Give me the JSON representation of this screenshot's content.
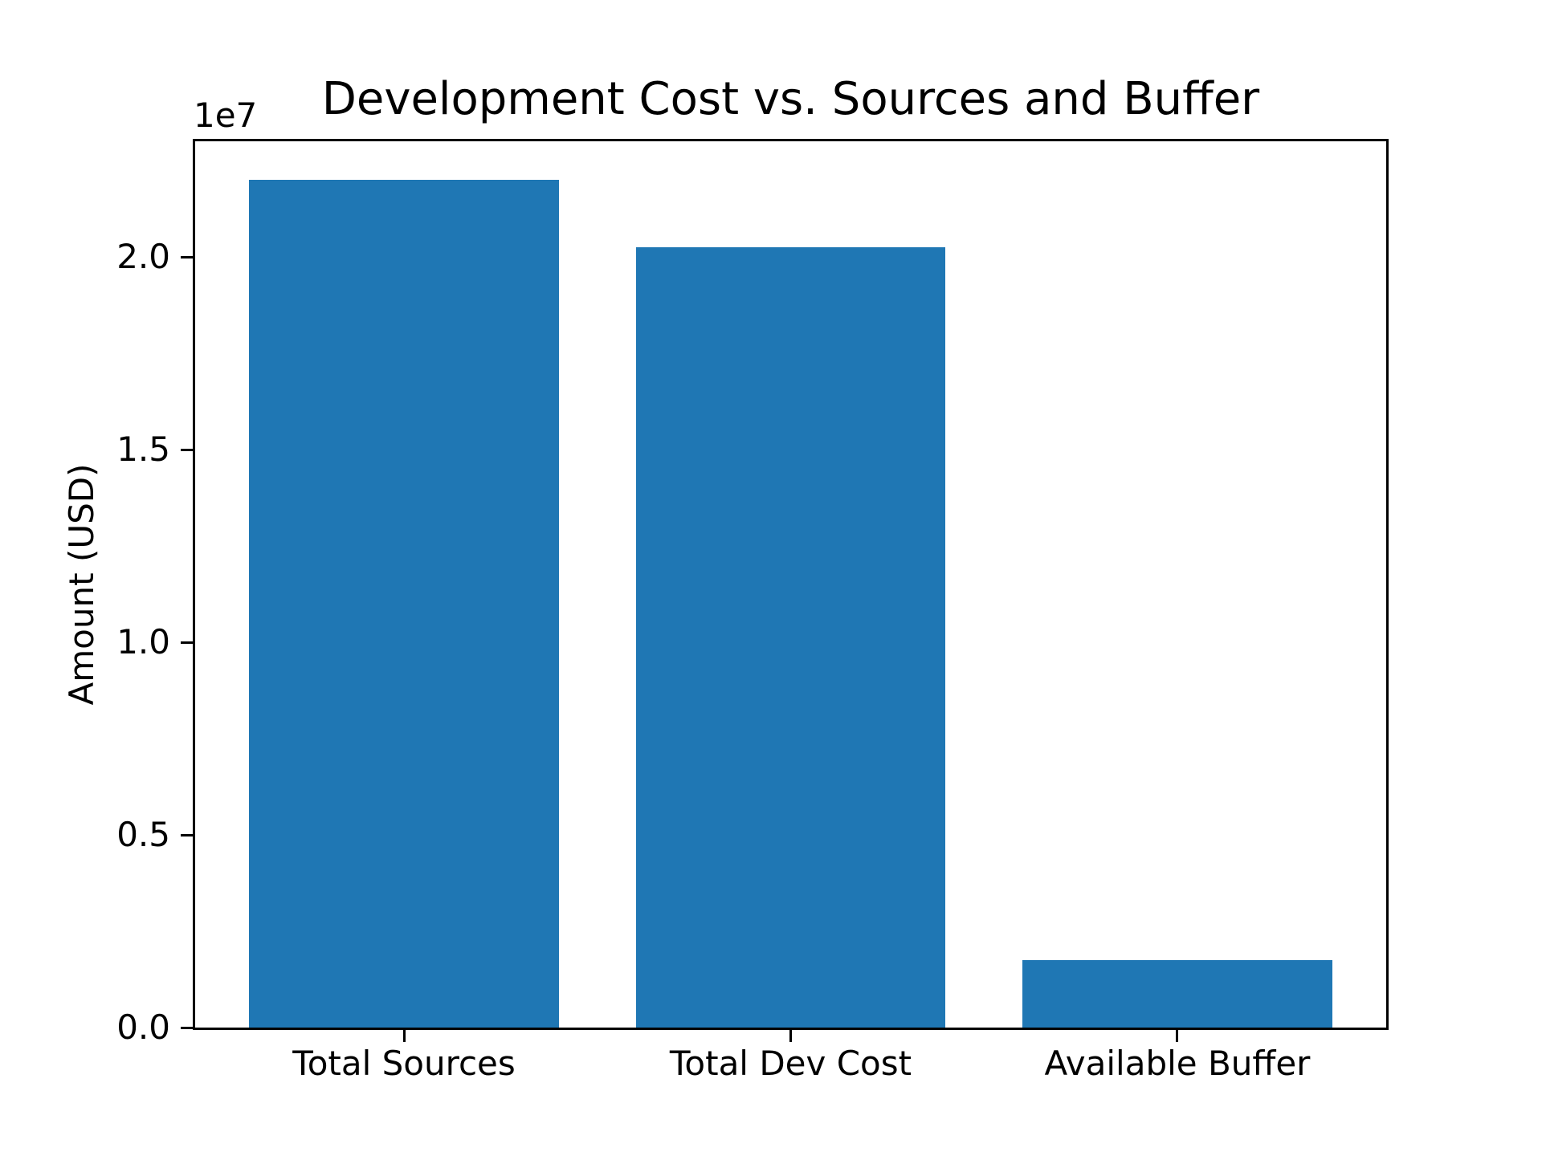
{
  "chart_data": {
    "type": "bar",
    "title": "Development Cost vs. Sources and Buffer",
    "xlabel": "",
    "ylabel": "Amount (USD)",
    "offset_text": "1e7",
    "categories": [
      "Total Sources",
      "Total Dev Cost",
      "Available Buffer"
    ],
    "values": [
      22000000,
      20250000,
      1750000
    ],
    "ylim": [
      0,
      23000000
    ],
    "yticks": [
      0,
      5000000,
      10000000,
      15000000,
      20000000
    ],
    "ytick_labels": [
      "0.0",
      "0.5",
      "1.0",
      "1.5",
      "2.0"
    ],
    "bar_color": "#1f77b4",
    "bar_width_fraction": 0.8,
    "grid": false,
    "legend_position": "none"
  }
}
